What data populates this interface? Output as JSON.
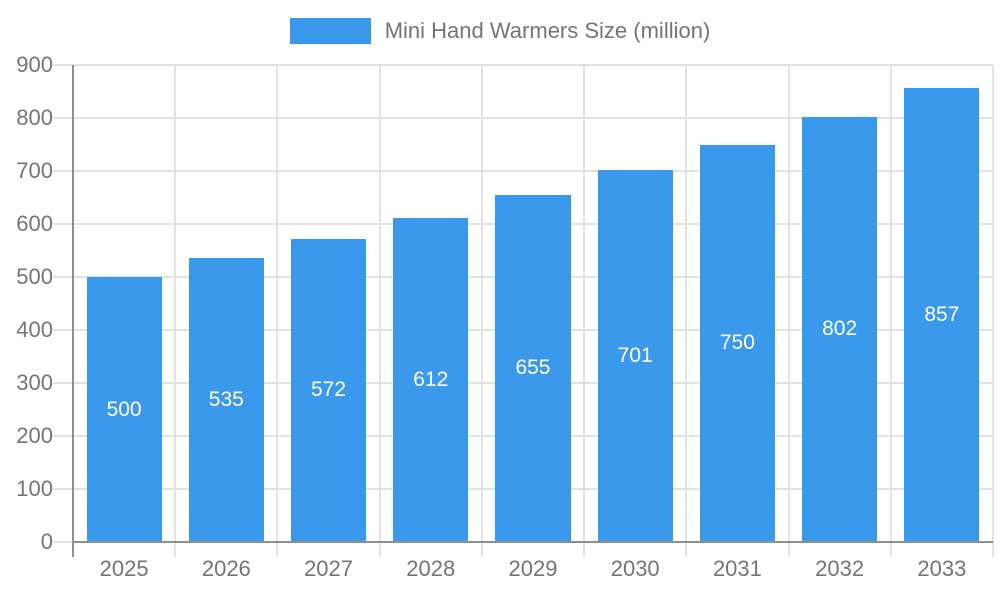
{
  "chart_data": {
    "type": "bar",
    "title": "",
    "legend": "Mini Hand Warmers Size (million)",
    "legend_position": "top-center",
    "categories": [
      "2025",
      "2026",
      "2027",
      "2028",
      "2029",
      "2030",
      "2031",
      "2032",
      "2033"
    ],
    "values": [
      500,
      535,
      572,
      612,
      655,
      701,
      750,
      802,
      857
    ],
    "xlabel": "",
    "ylabel": "",
    "ylim": [
      0,
      900
    ],
    "y_ticks": [
      0,
      100,
      200,
      300,
      400,
      500,
      600,
      700,
      800,
      900
    ],
    "grid": "on",
    "value_labels": "inside-center",
    "colors": {
      "bar": "#3B99EC",
      "axis_line": "#8F8F8F",
      "grid_line": "#E3E3E3",
      "tick_text": "#757575",
      "legend_text": "#757575",
      "value_label_text": "#FFFFFF",
      "background": "#FFFFFF"
    }
  }
}
